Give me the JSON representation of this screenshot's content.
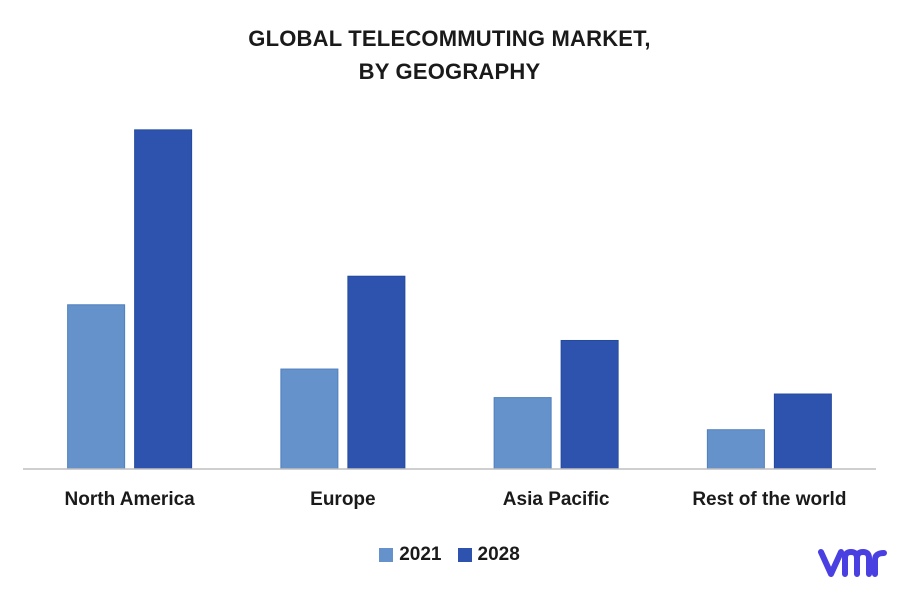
{
  "chart_data": {
    "type": "bar",
    "title_line1": "GLOBAL TELECOMMUTING MARKET,",
    "title_line2": "BY GEOGRAPHY",
    "categories": [
      "North America",
      "Europe",
      "Asia Pacific",
      "Rest of the world"
    ],
    "series": [
      {
        "name": "2021",
        "values": [
          4.6,
          2.8,
          2.0,
          1.1
        ],
        "color": "#6592CA"
      },
      {
        "name": "2028",
        "values": [
          9.5,
          5.4,
          3.6,
          2.1
        ],
        "color": "#2E53AE"
      }
    ],
    "ylim": [
      0,
      10
    ],
    "grid": false,
    "legend_position": "bottom"
  },
  "logo": {
    "icon": "vmr-logo-icon",
    "color": "#4A3FE0"
  }
}
